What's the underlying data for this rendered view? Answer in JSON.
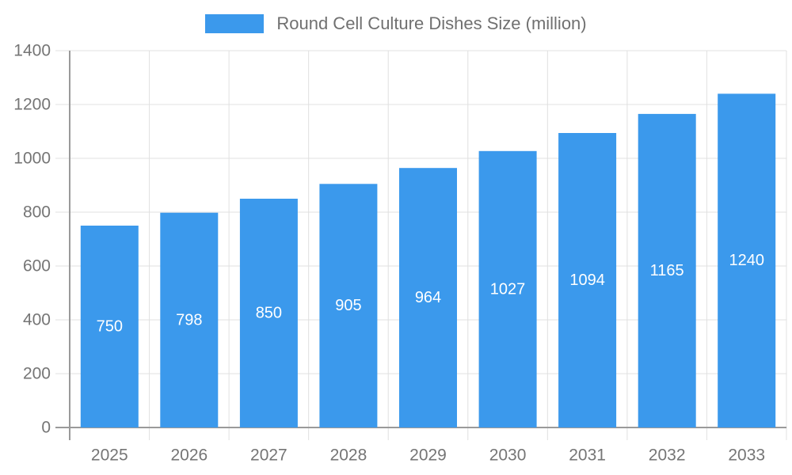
{
  "chart_data": {
    "type": "bar",
    "title": "Round Cell Culture Dishes Size (million)",
    "categories": [
      "2025",
      "2026",
      "2027",
      "2028",
      "2029",
      "2030",
      "2031",
      "2032",
      "2033"
    ],
    "values": [
      750,
      798,
      850,
      905,
      964,
      1027,
      1094,
      1165,
      1240
    ],
    "xlabel": "",
    "ylabel": "",
    "ylim": [
      0,
      1400
    ],
    "ytick_step": 200,
    "ytick_labels": [
      "0",
      "200",
      "400",
      "600",
      "800",
      "1000",
      "1200",
      "1400"
    ],
    "grid": true,
    "legend_position": "top",
    "colors": {
      "bar": "#3B99EC",
      "bar_value_label": "#FFFFFF",
      "axis_text": "#757575",
      "legend_text": "#707070",
      "grid_line": "#E0E0E0",
      "axis_line": "#9A9A9A"
    }
  }
}
